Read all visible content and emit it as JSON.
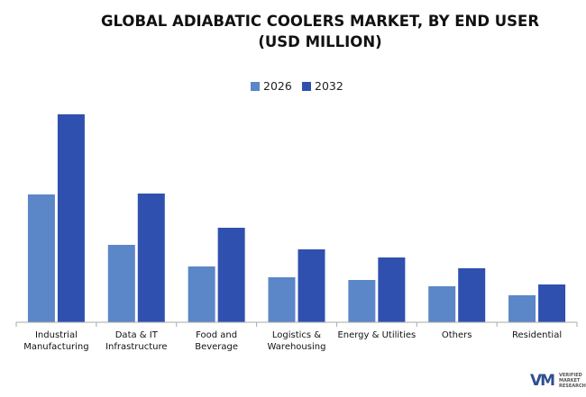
{
  "chart_data": {
    "type": "bar",
    "title": "GLOBAL ADIABATIC COOLERS MARKET, BY END USER (USD MILLION)",
    "categories": [
      "Industrial\nManufacturing",
      "Data & IT\nInfrastructure",
      "Food and\nBeverage",
      "Logistics &\nWarehousing",
      "Energy & Utilities",
      "Others",
      "Residential"
    ],
    "series": [
      {
        "name": "2026",
        "color": "#5b86c8",
        "values": [
          142,
          86,
          62,
          50,
          47,
          40,
          30
        ]
      },
      {
        "name": "2032",
        "color": "#2f50ae",
        "values": [
          231,
          143,
          105,
          81,
          72,
          60,
          42
        ]
      }
    ],
    "ylim": [
      0,
      250
    ],
    "grid": false,
    "watermark": "VERIFIED MARKET RESEARCH",
    "logo": "VM"
  }
}
